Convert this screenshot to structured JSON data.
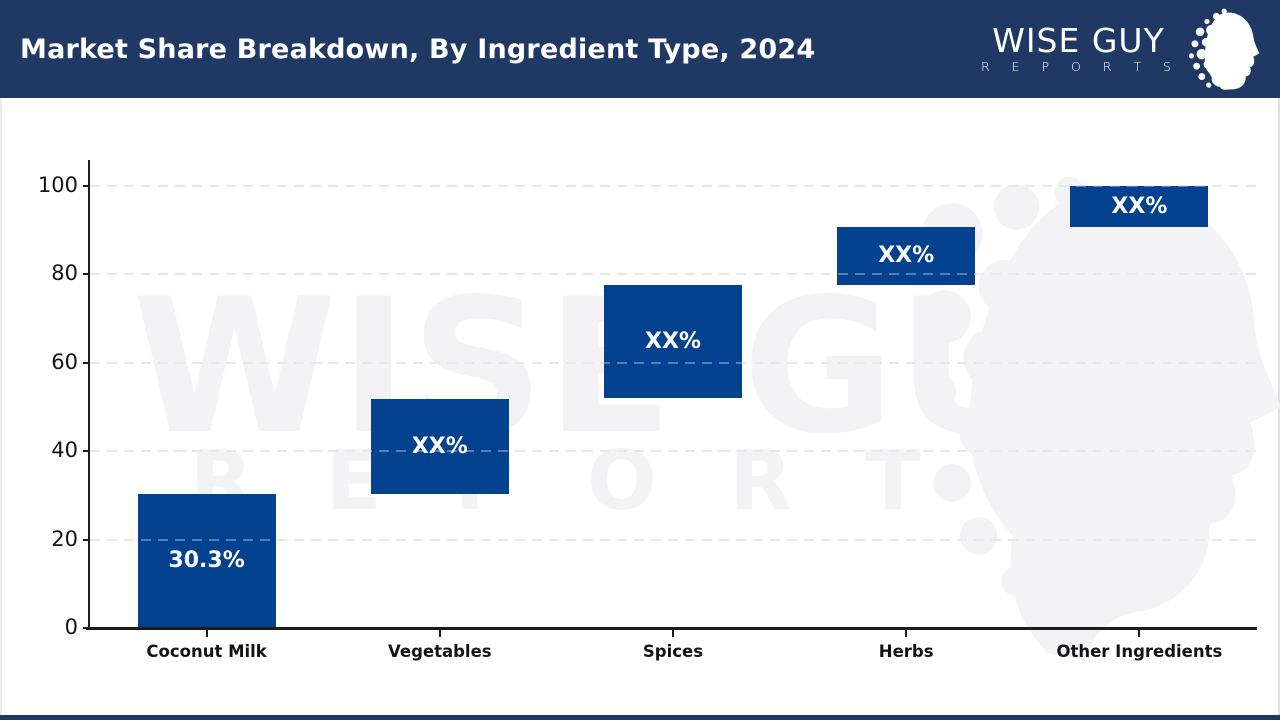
{
  "header": {
    "title": "Market Share Breakdown, By Ingredient Type, 2024",
    "bg_color": "#1f3864",
    "logo": {
      "line1": "WISE GUY",
      "line2": "R E P O R T S"
    }
  },
  "watermark": {
    "line1": "WISE GUY",
    "line2": "R E P O R T S"
  },
  "footer": {
    "bg_color": "#1f3864"
  },
  "chart_data": {
    "type": "bar",
    "subtype": "floating-waterfall",
    "title": "Market Share Breakdown, By Ingredient Type, 2024",
    "categories": [
      "Coconut Milk",
      "Vegetables",
      "Spices",
      "Herbs",
      "Other Ingredients"
    ],
    "bars": [
      {
        "category": "Coconut Milk",
        "base": 0,
        "top": 30.3,
        "label": "30.3%"
      },
      {
        "category": "Vegetables",
        "base": 30.3,
        "top": 51.8,
        "label": "XX%"
      },
      {
        "category": "Spices",
        "base": 51.9,
        "top": 77.6,
        "label": "XX%"
      },
      {
        "category": "Herbs",
        "base": 77.6,
        "top": 90.7,
        "label": "XX%"
      },
      {
        "category": "Other Ingredients",
        "base": 90.7,
        "top": 100.0,
        "label": "XX%"
      }
    ],
    "yticks": [
      0,
      20,
      40,
      60,
      80,
      100
    ],
    "ylim": [
      0,
      105.8
    ],
    "grid": "dashed-horizontal",
    "legend": "none",
    "bar_color": "#04418f",
    "bar_label_color": "#ffffff",
    "axis_color": "#1c1c1c"
  }
}
